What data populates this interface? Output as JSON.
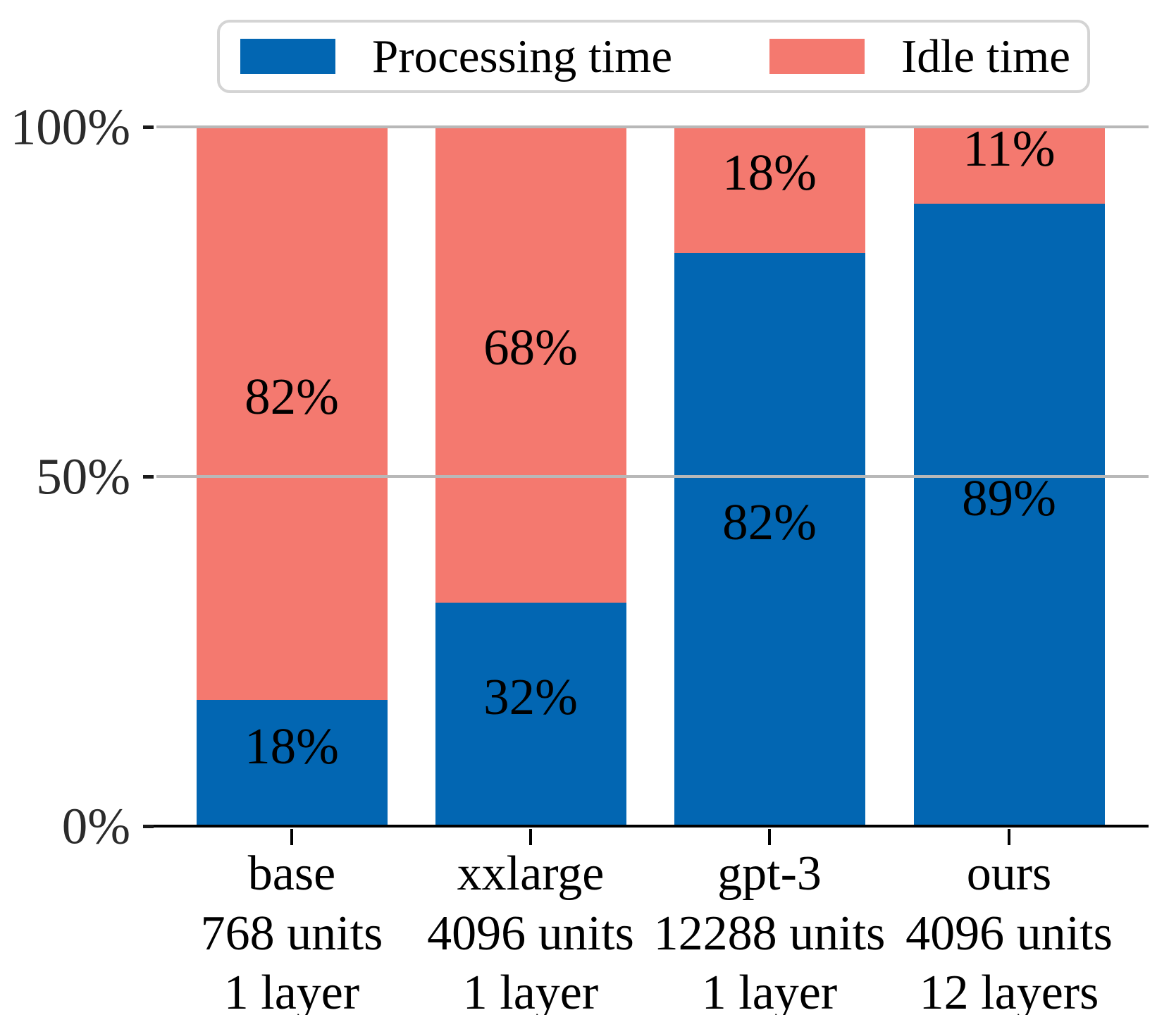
{
  "chart_data": {
    "type": "bar",
    "stacked": true,
    "orientation": "vertical",
    "title": "",
    "xlabel": "",
    "ylabel": "",
    "ylim": [
      0,
      100
    ],
    "yticks": [
      {
        "label": "0%",
        "value": 0
      },
      {
        "label": "50%",
        "value": 50
      },
      {
        "label": "100%",
        "value": 100
      }
    ],
    "grid": true,
    "grid_color": "#b8b8b8",
    "legend_position": "upper center",
    "categories": [
      "base 768 units 1 layer",
      "xxlarge 4096 units 1 layer",
      "gpt-3 12288 units 1 layer",
      "ours 4096 units 12 layers"
    ],
    "category_lines": [
      [
        "base",
        "768 units",
        "1 layer"
      ],
      [
        "xxlarge",
        "4096 units",
        "1 layer"
      ],
      [
        "gpt-3",
        "12288 units",
        "1 layer"
      ],
      [
        "ours",
        "4096 units",
        "12 layers"
      ]
    ],
    "series": [
      {
        "name": "Processing time",
        "color": "#0266b2",
        "values": [
          18,
          32,
          82,
          89
        ],
        "labels": [
          "18%",
          "32%",
          "82%",
          "89%"
        ]
      },
      {
        "name": "Idle time",
        "color": "#f4796f",
        "values": [
          82,
          68,
          18,
          11
        ],
        "labels": [
          "82%",
          "68%",
          "18%",
          "11%"
        ]
      }
    ]
  }
}
